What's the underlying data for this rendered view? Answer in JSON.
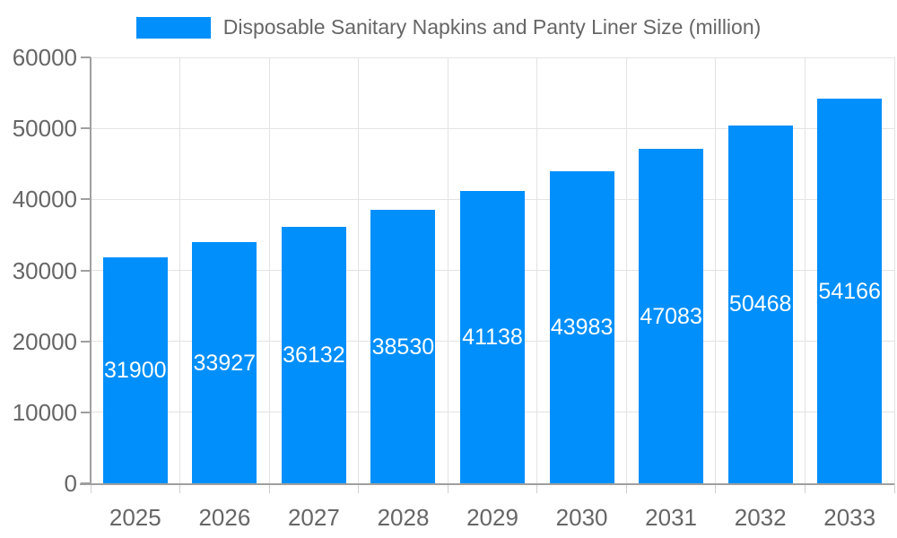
{
  "colors": {
    "bar": "#008FFB",
    "grid": "#e3e3e3",
    "axis": "#9f9f9f",
    "tick": "#cfcfcf",
    "label": "#666666",
    "value_label": "#ffffff",
    "background": "#ffffff"
  },
  "chart_data": {
    "type": "bar",
    "title": "Disposable Sanitary Napkins and Panty Liner Size (million)",
    "series": [
      {
        "name": "Disposable Sanitary Napkins and Panty Liner Size (million)",
        "values": [
          31900,
          33927,
          36132,
          38530,
          41138,
          43983,
          47083,
          50468,
          54166
        ]
      }
    ],
    "categories": [
      "2025",
      "2026",
      "2027",
      "2028",
      "2029",
      "2030",
      "2031",
      "2032",
      "2033"
    ],
    "values": [
      31900,
      33927,
      36132,
      38530,
      41138,
      43983,
      47083,
      50468,
      54166
    ],
    "value_label_texts": [
      "31900",
      "33927",
      "36132",
      "38530",
      "41138",
      "43983",
      "47083",
      "50468",
      "54166"
    ],
    "xlabel": "",
    "ylabel": "",
    "ylim": [
      0,
      60000
    ],
    "yticks": [
      0,
      10000,
      20000,
      30000,
      40000,
      50000,
      60000
    ],
    "ytick_labels": [
      "0",
      "10000",
      "20000",
      "30000",
      "40000",
      "50000",
      "60000"
    ],
    "grid": true,
    "gridlines": {
      "horizontal": true,
      "vertical": true
    },
    "legend_position": "top-center",
    "value_labels_position": "inside-center"
  }
}
